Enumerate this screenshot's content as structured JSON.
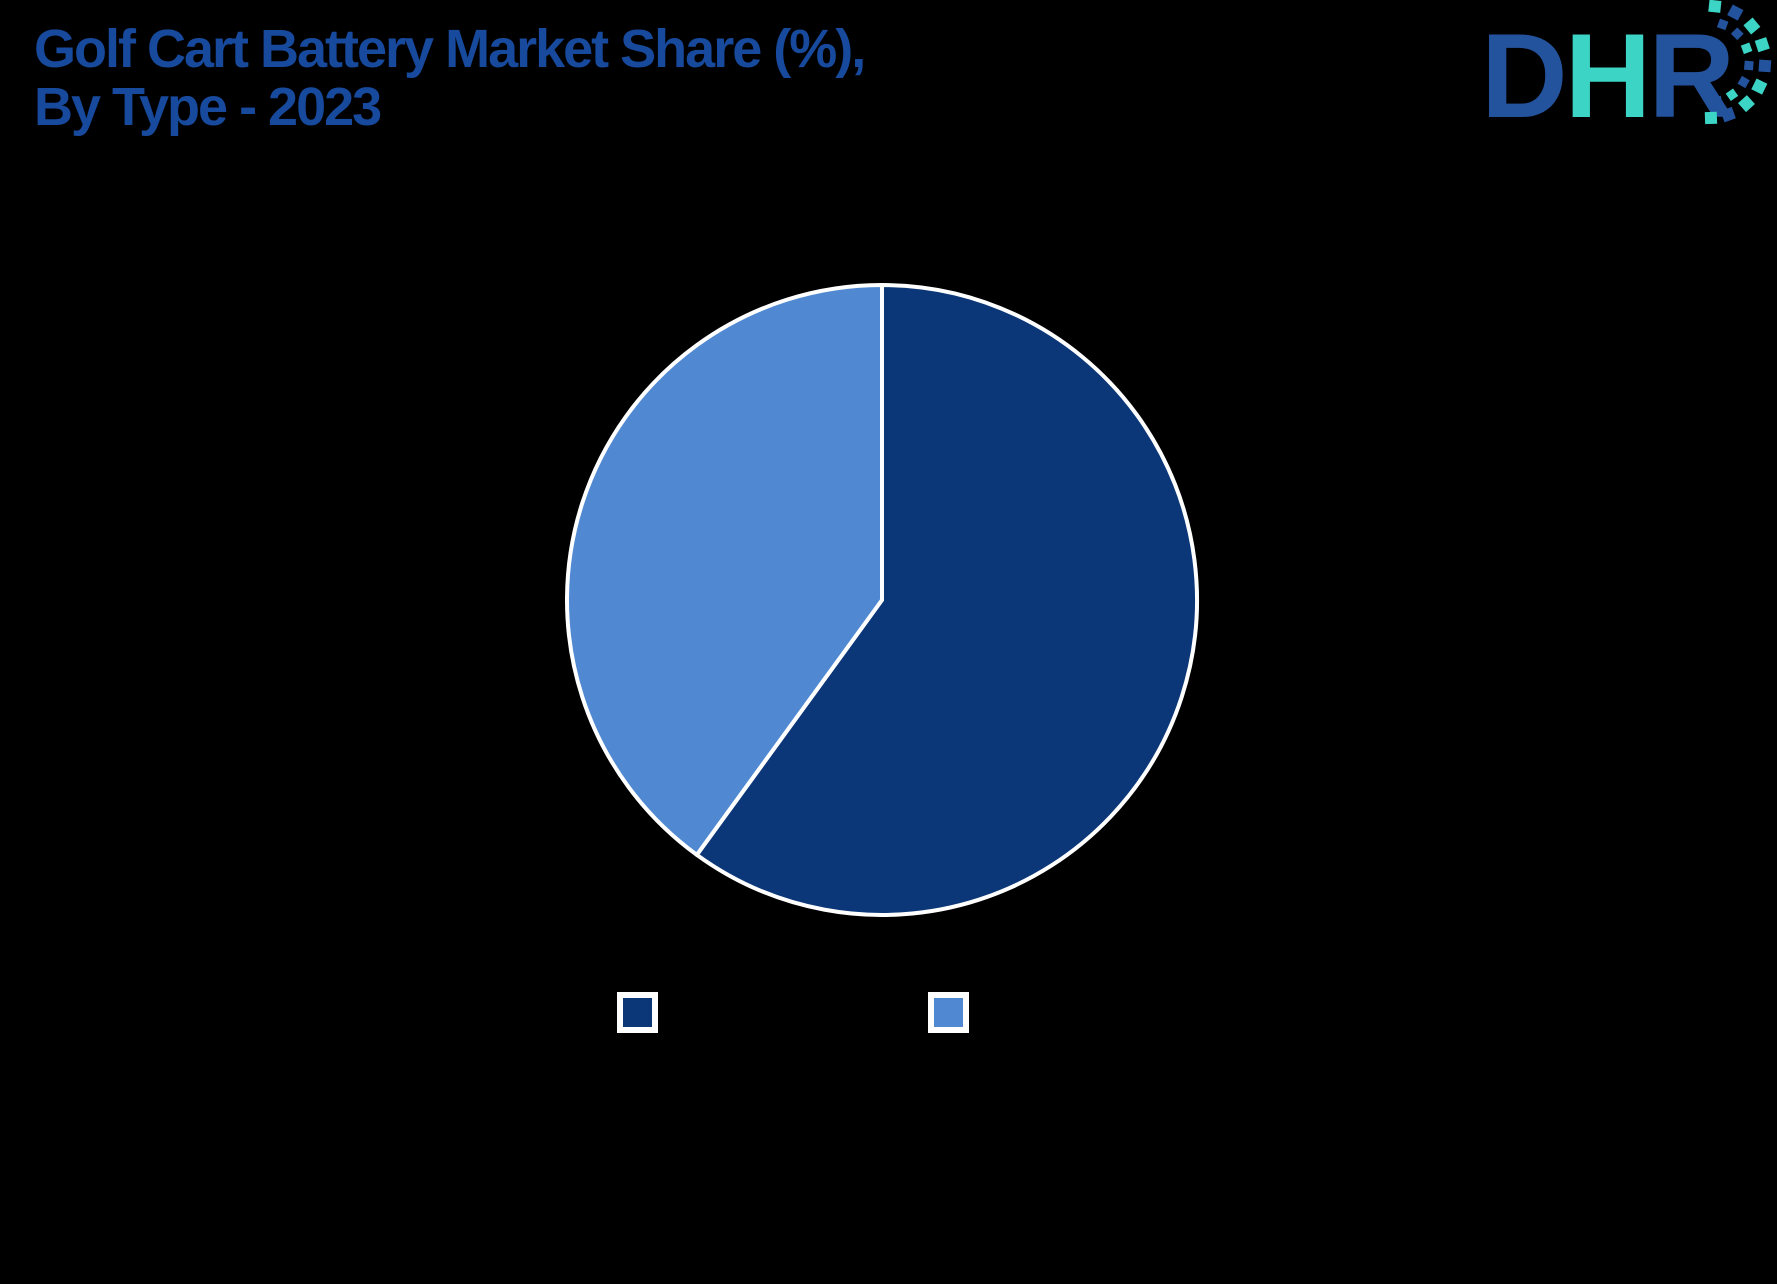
{
  "background_color": "#000000",
  "title": {
    "line1": "Golf Cart Battery Market Share (%),",
    "line2": "By Type - 2023",
    "color": "#17499d"
  },
  "logo": {
    "letters": [
      {
        "char": "D",
        "color": "#24539e"
      },
      {
        "char": "H",
        "color": "#3BD4C5"
      },
      {
        "char": "R",
        "color": "#24539e"
      }
    ],
    "dot_colors": {
      "blue": "#24539e",
      "teal": "#3BD4C5"
    }
  },
  "chart_data": {
    "type": "pie",
    "title": "Golf Cart Battery Market Share (%), By Type - 2023",
    "start_angle_deg": 0,
    "direction": "clockwise",
    "stroke_color": "#ffffff",
    "stroke_width": 4,
    "legend_position": "bottom",
    "data_labels_visible": false,
    "slices": [
      {
        "label": "",
        "value": 60,
        "color": "#0b3677"
      },
      {
        "label": "",
        "value": 40,
        "color": "#5089d2"
      }
    ]
  },
  "legend": {
    "items": [
      {
        "label": "",
        "color": "#0b3677"
      },
      {
        "label": "",
        "color": "#5089d2"
      }
    ]
  }
}
